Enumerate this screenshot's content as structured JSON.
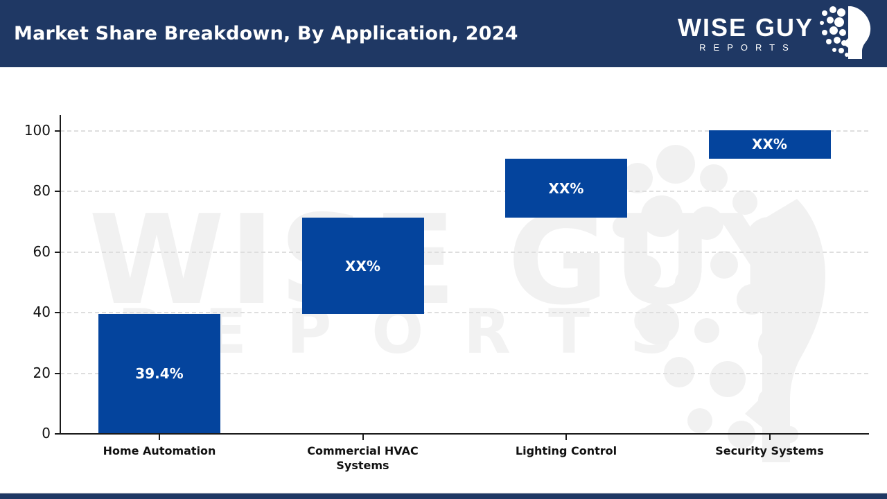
{
  "header": {
    "title": "Market Share Breakdown, By Application, 2024",
    "background": "#1F3864",
    "logo": {
      "line1": "WISE GUY",
      "line2": "REPORTS"
    }
  },
  "watermark": {
    "line1": "WISE GUY",
    "line2": "REPORTS"
  },
  "chart_data": {
    "type": "bar",
    "subtype": "waterfall",
    "title": "Market Share Breakdown, By Application, 2024",
    "categories": [
      "Home Automation",
      "Commercial HVAC Systems",
      "Lighting Control",
      "Security Systems"
    ],
    "segments": [
      {
        "category": "Home Automation",
        "start": 0,
        "end": 39.4,
        "label": "39.4%"
      },
      {
        "category": "Commercial HVAC Systems",
        "start": 39.4,
        "end": 71.0,
        "label": "XX%"
      },
      {
        "category": "Lighting Control",
        "start": 71.0,
        "end": 90.6,
        "label": "XX%"
      },
      {
        "category": "Security Systems",
        "start": 90.6,
        "end": 100.0,
        "label": "XX%"
      }
    ],
    "yticks": [
      0,
      20,
      40,
      60,
      80,
      100
    ],
    "ylim": [
      0,
      105
    ],
    "xlabel": "",
    "ylabel": "",
    "grid": "horizontal-dashed",
    "legend": "none",
    "bar_color": "#04449D",
    "bar_label_color": "#FFFFFF",
    "axis_color": "#1A1A1A"
  },
  "footer": {
    "background": "#1F3864"
  }
}
